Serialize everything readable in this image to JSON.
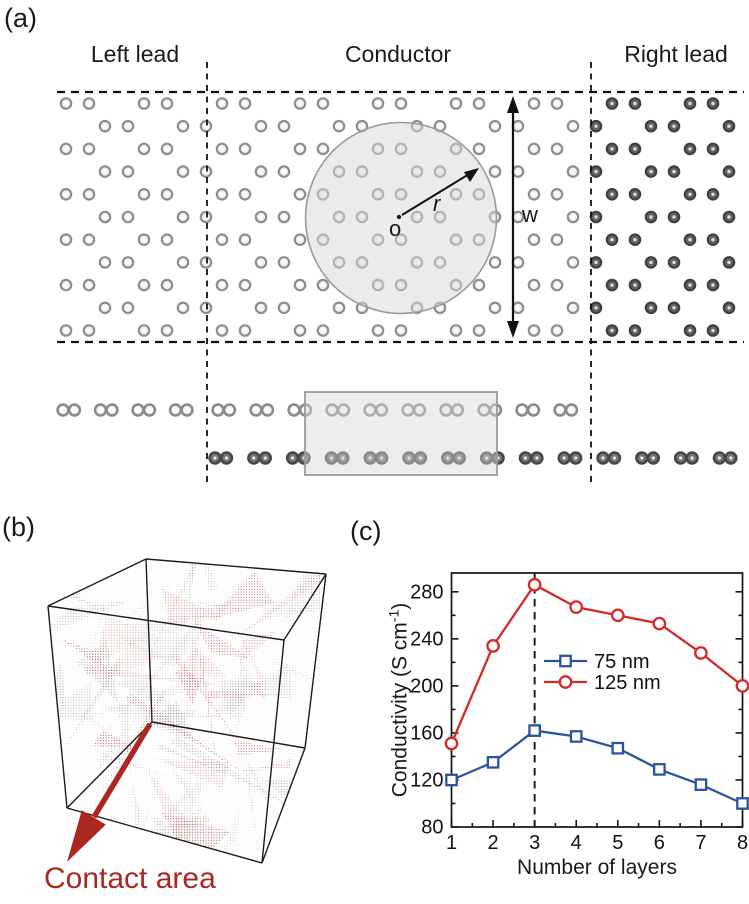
{
  "panel_a": {
    "label": "(a)",
    "left_lead": "Left lead",
    "conductor": "Conductor",
    "right_lead": "Right lead",
    "r_label": "r",
    "o_label": "o",
    "w_label": "w"
  },
  "panel_b": {
    "label": "(b)",
    "contact_area": "Contact area"
  },
  "panel_c": {
    "label": "(c)"
  },
  "chart_data": {
    "type": "line",
    "x": [
      1,
      2,
      3,
      4,
      5,
      6,
      7,
      8
    ],
    "series": [
      {
        "name": "75 nm",
        "marker": "square",
        "color": "#2c549c",
        "values": [
          120,
          135,
          162,
          157,
          147,
          129,
          116,
          100
        ]
      },
      {
        "name": "125 nm",
        "marker": "circle",
        "color": "#d52b28",
        "values": [
          151,
          234,
          286,
          267,
          260,
          253,
          228,
          200
        ]
      }
    ],
    "title": "",
    "xlabel": "Number of layers",
    "ylabel_main": "Conductivity (S cm",
    "ylabel_sup": "-1",
    "ylabel_close": ")",
    "xticks": [
      1,
      2,
      3,
      4,
      5,
      6,
      7,
      8
    ],
    "yticks": [
      80,
      120,
      160,
      200,
      240,
      280
    ],
    "x_minor_step": 0.5,
    "y_minor_step": 20,
    "xlim": [
      1,
      8
    ],
    "ylim": [
      80,
      296
    ],
    "grid": false,
    "legend_position": "inside-middle-left",
    "annotation_dashed_vline_x": 3
  },
  "colors": {
    "atom_light_fill": "#f1f1f1",
    "atom_light_ring": "#8d8d8d",
    "atom_dark_fill": "#636363",
    "atom_dark_ring": "#3f3f3f",
    "shaded_region": "#d8d8d8",
    "dashed_line": "#111111",
    "contact_red": "#ab2820",
    "flake_gray": "#6b6b6b",
    "flake_red": "#b8312a",
    "cube_edge": "#1c1c1c",
    "axis_black": "#141414"
  }
}
